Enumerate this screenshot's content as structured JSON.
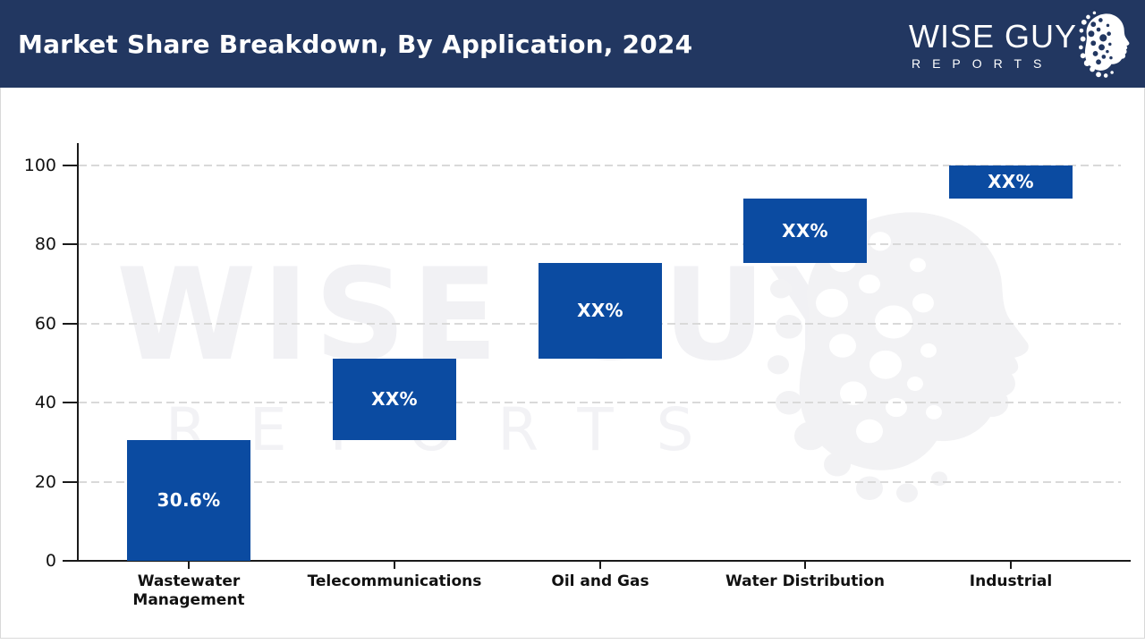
{
  "header": {
    "title": "Market Share Breakdown, By Application, 2024",
    "logo": {
      "line1": "WISE GUY",
      "line2": "REPORTS"
    }
  },
  "watermark": {
    "line1": "WISE GUY",
    "line2": "REPORTS"
  },
  "colors": {
    "header_bg": "#223761",
    "bar": "#0b4ba1",
    "grid": "#d9d9d9",
    "axis": "#1a1a1a",
    "watermark": "#f1f1f4"
  },
  "chart_data": {
    "type": "bar",
    "subtype": "floating-waterfall",
    "title": "Market Share Breakdown, By Application, 2024",
    "xlabel": "",
    "ylabel": "",
    "ylim": [
      0,
      105
    ],
    "yticks": [
      0,
      20,
      40,
      60,
      80,
      100
    ],
    "grid": "horizontal-dashed",
    "legend": "none",
    "categories": [
      "Wastewater Management",
      "Telecommunications",
      "Oil and Gas",
      "Water Distribution",
      "Industrial"
    ],
    "segments": [
      {
        "category": "Wastewater Management",
        "start": 0,
        "end": 30.6,
        "label": "30.6%"
      },
      {
        "category": "Telecommunications",
        "start": 30.6,
        "end": 51.1,
        "label": "XX%"
      },
      {
        "category": "Oil and Gas",
        "start": 51.1,
        "end": 75.4,
        "label": "XX%"
      },
      {
        "category": "Water Distribution",
        "start": 75.4,
        "end": 91.7,
        "label": "XX%"
      },
      {
        "category": "Industrial",
        "start": 91.7,
        "end": 100,
        "label": "XX%"
      }
    ]
  }
}
